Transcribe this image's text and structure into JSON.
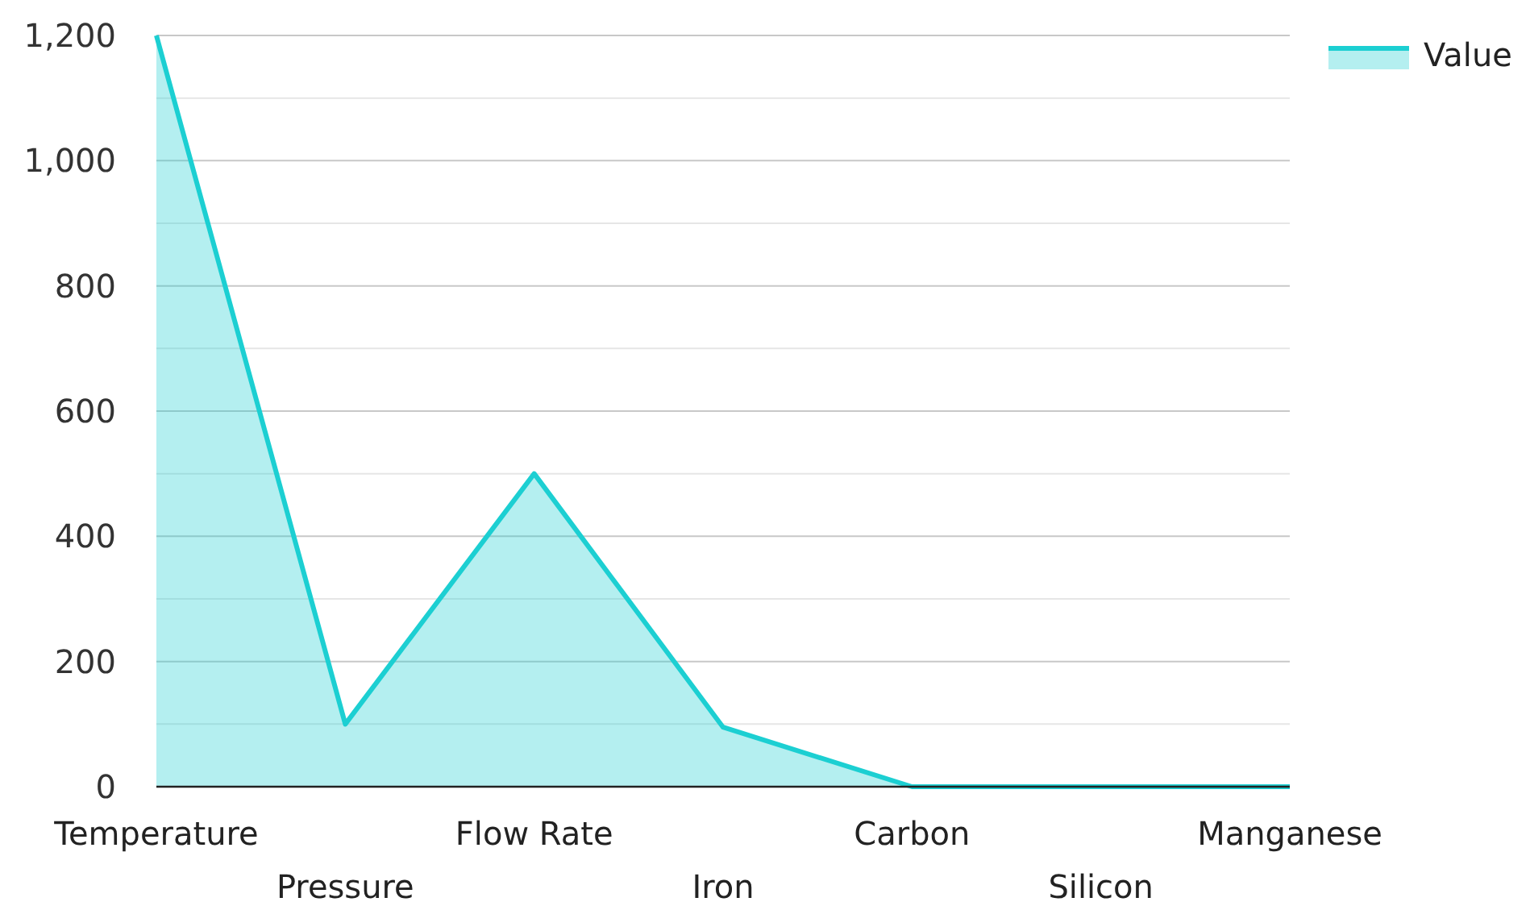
{
  "chart_data": {
    "type": "area",
    "categories": [
      "Temperature",
      "Pressure",
      "Flow Rate",
      "Iron",
      "Carbon",
      "Silicon",
      "Manganese"
    ],
    "series": [
      {
        "name": "Value",
        "color": "#1ccfd2",
        "values": [
          1200,
          100,
          500,
          95,
          0,
          0,
          0
        ]
      }
    ],
    "ylim": [
      0,
      1200
    ],
    "yticks": [
      0,
      {
        "value": 100,
        "label": null
      },
      200,
      {
        "value": 300,
        "label": null
      },
      400,
      {
        "value": 500,
        "label": null
      },
      600,
      {
        "value": 700,
        "label": null
      },
      800,
      {
        "value": 900,
        "label": null
      },
      {
        "value": 1000,
        "label": "1,000"
      },
      {
        "value": 1100,
        "label": null
      },
      {
        "value": 1200,
        "label": "1,200"
      }
    ],
    "grid": "y",
    "legend": "top right"
  }
}
